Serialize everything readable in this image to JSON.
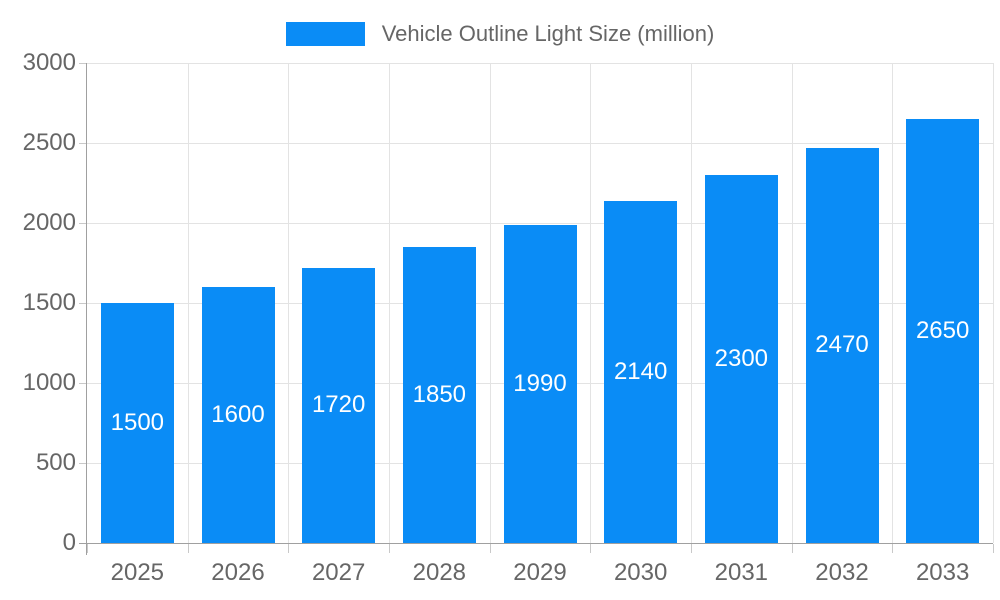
{
  "legend": {
    "label": "Vehicle Outline Light Size (million)",
    "swatch_color": "#0a8cf6"
  },
  "chart_data": {
    "type": "bar",
    "title": "Vehicle Outline Light Size (million)",
    "categories": [
      "2025",
      "2026",
      "2027",
      "2028",
      "2029",
      "2030",
      "2031",
      "2032",
      "2033"
    ],
    "values": [
      1500,
      1600,
      1720,
      1850,
      1990,
      2140,
      2300,
      2470,
      2650
    ],
    "xlabel": "",
    "ylabel": "",
    "ylim": [
      0,
      3000
    ],
    "yticks": [
      0,
      500,
      1000,
      1500,
      2000,
      2500,
      3000
    ],
    "grid": true,
    "legend_position": "top",
    "bar_color": "#0a8cf6",
    "value_label_color": "#ffffff",
    "axis_text_color": "#666666",
    "grid_color": "#e3e3e3",
    "tick_color": "#c9c9c9",
    "axis_line_color": "#a0a0a0"
  }
}
